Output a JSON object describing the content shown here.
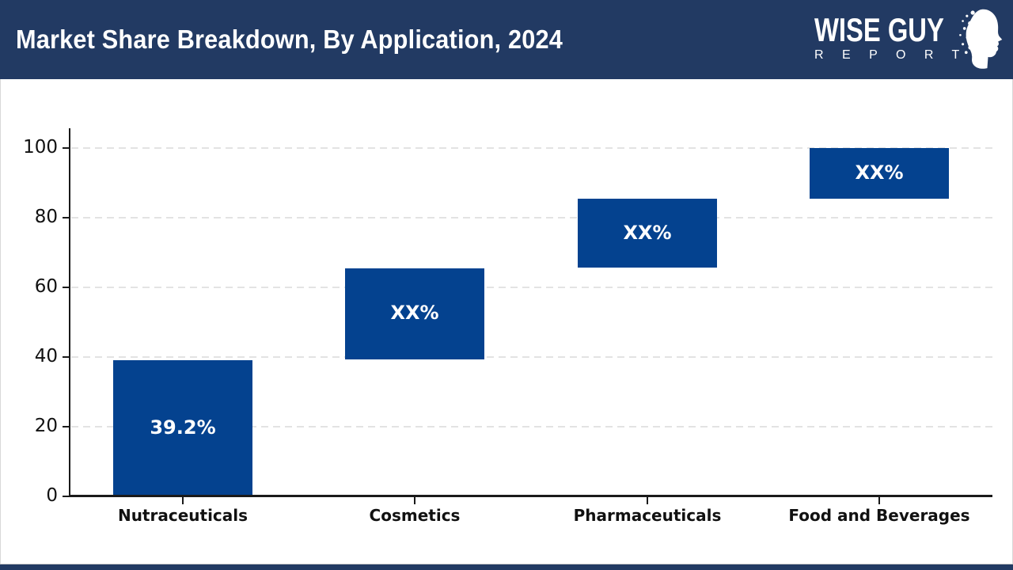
{
  "header": {
    "title": "Market Share Breakdown, By Application, 2024",
    "logo": {
      "line1": "WISE GUY",
      "line2": "R E P O R T S"
    }
  },
  "watermark": {
    "line1": "WISE GUY",
    "line2": "R E P O R T S"
  },
  "chart_data": {
    "type": "bar",
    "subtype": "waterfall",
    "title": "Market Share Breakdown, By Application, 2024",
    "categories": [
      "Nutraceuticals",
      "Cosmetics",
      "Pharmaceuticals",
      "Food and Beverages"
    ],
    "segments": [
      {
        "category": "Nutraceuticals",
        "start": 0,
        "end": 39.2,
        "label": "39.2%"
      },
      {
        "category": "Cosmetics",
        "start": 39.4,
        "end": 65.4,
        "label": "XX%"
      },
      {
        "category": "Pharmaceuticals",
        "start": 65.6,
        "end": 85.4,
        "label": "XX%"
      },
      {
        "category": "Food and Beverages",
        "start": 85.4,
        "end": 100,
        "label": "XX%"
      }
    ],
    "y_ticks": [
      0,
      20,
      40,
      60,
      80,
      100
    ],
    "ylim": [
      0,
      105
    ],
    "xlabel": "",
    "ylabel": "",
    "grid": "dashed-horizontal",
    "legend": "none"
  },
  "theme": {
    "header_bg": "#223a63",
    "bar_color": "#04428f",
    "grid_color": "#e3e3e3",
    "watermark_color": "#f3f3f3"
  }
}
